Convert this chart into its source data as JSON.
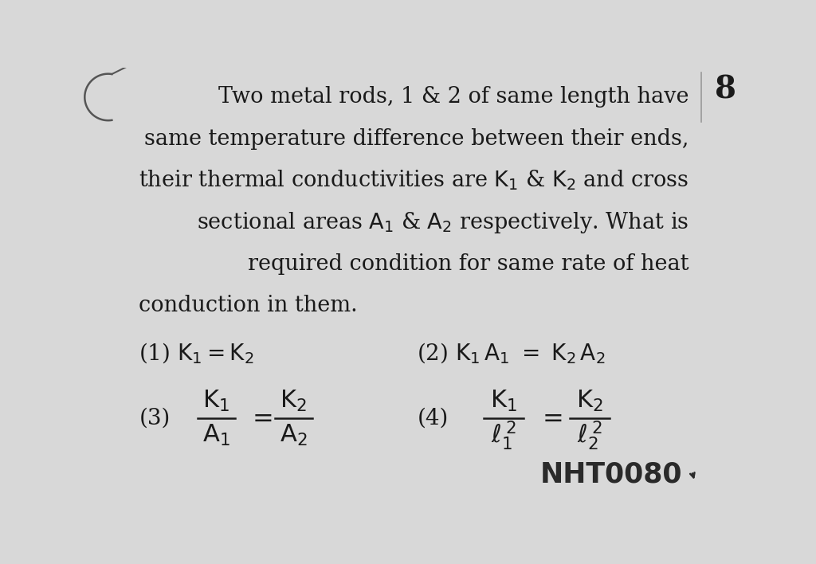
{
  "bg_color": "#d8d8d8",
  "text_color": "#1a1a1a",
  "question_number": "8",
  "main_text_lines": [
    "Two metal rods, 1 & 2 of same length have",
    "same temperature difference between their ends,",
    "their thermal conductivities are $\\mathrm{K_1}$ & $\\mathrm{K_2}$ and cross",
    "sectional areas $\\mathrm{A_1}$ & $\\mathrm{A_2}$ respectively. What is",
    "required condition for same rate of heat",
    "conduction in them."
  ],
  "nht_code": "NHT0080",
  "font_size_main": 19.5,
  "font_size_options": 20,
  "font_size_number": 28,
  "font_size_nht": 22
}
